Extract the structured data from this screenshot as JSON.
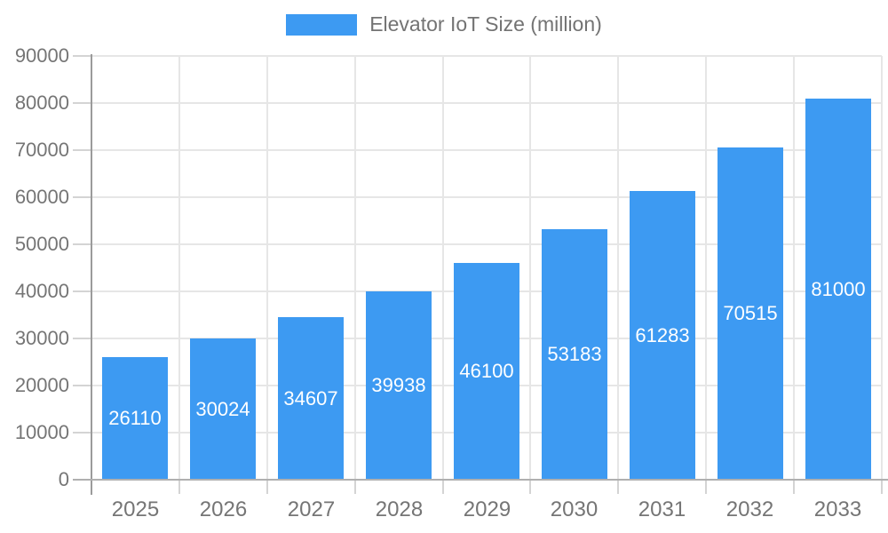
{
  "legend": {
    "label": "Elevator IoT Size (million)"
  },
  "chart_data": {
    "type": "bar",
    "title": "Elevator IoT Size (million)",
    "series_name": "Elevator IoT Size (million)",
    "categories": [
      "2025",
      "2026",
      "2027",
      "2028",
      "2029",
      "2030",
      "2031",
      "2032",
      "2033"
    ],
    "values": [
      26110,
      30024,
      34607,
      39938,
      46100,
      53183,
      61283,
      70515,
      81000
    ],
    "value_labels": [
      "26110",
      "30024",
      "34607",
      "39938",
      "46100",
      "53183",
      "61283",
      "70515",
      "81000"
    ],
    "xlabel": "",
    "ylabel": "",
    "ylim": [
      0,
      90000
    ],
    "yticks": [
      0,
      10000,
      20000,
      30000,
      40000,
      50000,
      60000,
      70000,
      80000,
      90000
    ],
    "grid": true,
    "legend_position": "top-center",
    "colors": {
      "bar": "#3d9af2",
      "gridline": "#e6e6e6",
      "tick": "#d4d4d4",
      "axis_line": "#9b9b9b",
      "baseline": "#b0b0b0",
      "tick_text": "#757575",
      "value_text": "#ffffff"
    }
  }
}
